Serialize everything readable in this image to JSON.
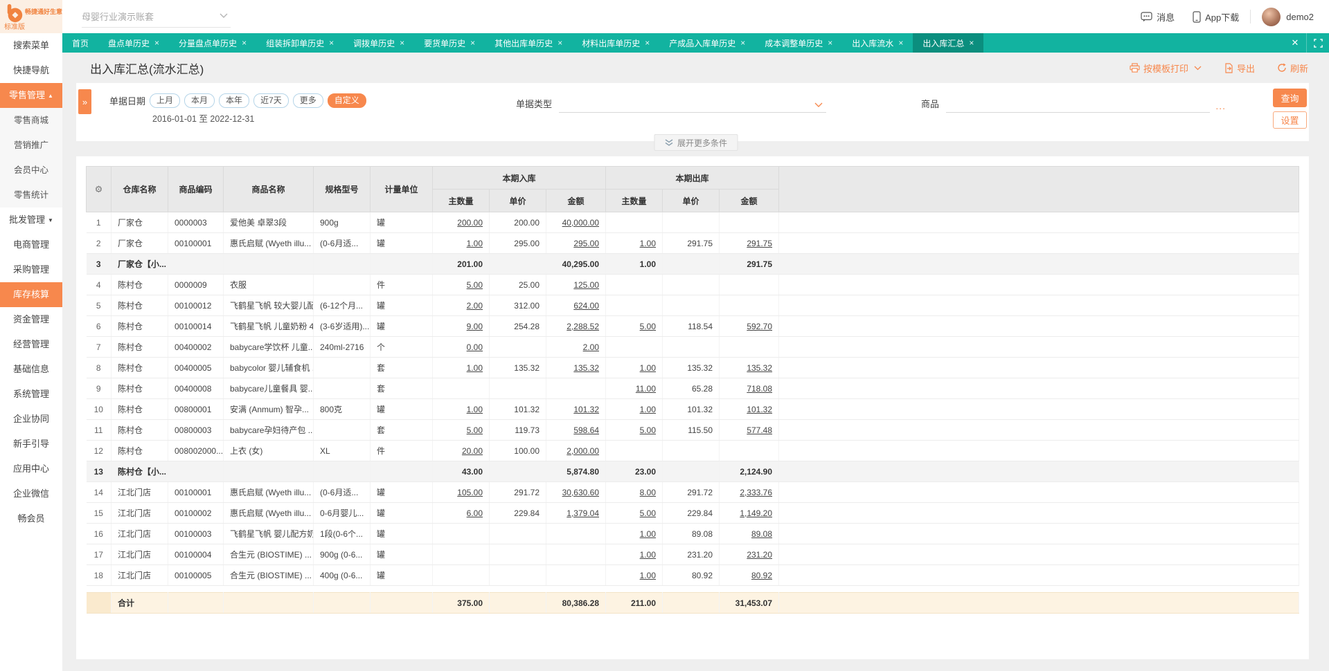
{
  "topbar": {
    "logo_title": "畅捷通好生意",
    "logo_subtitle": "标准版",
    "account_value": "母婴行业演示账套",
    "messages": "消息",
    "app_download": "App下载",
    "username": "demo2"
  },
  "tabbar": {
    "tabs": [
      {
        "label": "首页",
        "closable": false,
        "active": false
      },
      {
        "label": "盘点单历史",
        "closable": true,
        "active": false
      },
      {
        "label": "分量盘点单历史",
        "closable": true,
        "active": false
      },
      {
        "label": "组装拆卸单历史",
        "closable": true,
        "active": false
      },
      {
        "label": "调拨单历史",
        "closable": true,
        "active": false
      },
      {
        "label": "要货单历史",
        "closable": true,
        "active": false
      },
      {
        "label": "其他出库单历史",
        "closable": true,
        "active": false
      },
      {
        "label": "材料出库单历史",
        "closable": true,
        "active": false
      },
      {
        "label": "产成品入库单历史",
        "closable": true,
        "active": false
      },
      {
        "label": "成本调整单历史",
        "closable": true,
        "active": false
      },
      {
        "label": "出入库流水",
        "closable": true,
        "active": false
      },
      {
        "label": "出入库汇总",
        "closable": true,
        "active": true
      }
    ]
  },
  "sidebar": {
    "items": [
      {
        "label": "搜索菜单",
        "type": "normal"
      },
      {
        "label": "快捷导航",
        "type": "normal"
      },
      {
        "label": "零售管理",
        "type": "active",
        "arrow": "up"
      },
      {
        "label": "零售商城",
        "type": "sub"
      },
      {
        "label": "营销推广",
        "type": "sub"
      },
      {
        "label": "会员中心",
        "type": "sub"
      },
      {
        "label": "零售统计",
        "type": "sub"
      },
      {
        "label": "批发管理",
        "type": "normal",
        "arrow": "down"
      },
      {
        "label": "电商管理",
        "type": "normal"
      },
      {
        "label": "采购管理",
        "type": "normal"
      },
      {
        "label": "库存核算",
        "type": "active"
      },
      {
        "label": "资金管理",
        "type": "normal"
      },
      {
        "label": "经营管理",
        "type": "normal"
      },
      {
        "label": "基础信息",
        "type": "normal"
      },
      {
        "label": "系统管理",
        "type": "normal"
      },
      {
        "label": "企业协同",
        "type": "normal"
      },
      {
        "label": "新手引导",
        "type": "normal"
      },
      {
        "label": "应用中心",
        "type": "normal"
      },
      {
        "label": "企业微信",
        "type": "normal"
      },
      {
        "label": "畅会员",
        "type": "normal"
      }
    ]
  },
  "page": {
    "title": "出入库汇总(流水汇总)",
    "print": "按模板打印",
    "export": "导出",
    "refresh": "刷新"
  },
  "filters": {
    "date_label": "单据日期",
    "date_pills": [
      "上月",
      "本月",
      "本年",
      "近7天",
      "更多"
    ],
    "custom_pill": "自定义",
    "date_range": "2016-01-01 至 2022-12-31",
    "doc_type_label": "单据类型",
    "product_label": "商品",
    "product_more": "...",
    "search": "查询",
    "settings": "设置",
    "expand_more": "展开更多条件"
  },
  "colors": {
    "teal": "#12b3a0",
    "teal_active_tab": "#0b8e7e",
    "orange": "#f7884d",
    "total_row_bg": "#fdf3e2"
  },
  "table": {
    "headers": {
      "warehouse": "仓库名称",
      "code": "商品编码",
      "name": "商品名称",
      "spec": "规格型号",
      "unit": "计量单位",
      "in_group": "本期入库",
      "out_group": "本期出库",
      "qty": "主数量",
      "price": "单价",
      "amount": "金额"
    },
    "rows": [
      {
        "type": "data",
        "seq": "1",
        "warehouse": "厂家仓",
        "code": "0000003",
        "name": "爱他美 卓翠3段",
        "spec": "900g",
        "unit": "罐",
        "in_qty": "200.00",
        "in_price": "200.00",
        "in_amount": "40,000.00",
        "out_qty": "",
        "out_price": "",
        "out_amount": ""
      },
      {
        "type": "data",
        "seq": "2",
        "warehouse": "厂家仓",
        "code": "00100001",
        "name": "惠氏启赋 (Wyeth illu...",
        "spec": "(0-6月适...",
        "unit": "罐",
        "in_qty": "1.00",
        "in_price": "295.00",
        "in_amount": "295.00",
        "out_qty": "1.00",
        "out_price": "291.75",
        "out_amount": "291.75"
      },
      {
        "type": "subtotal",
        "seq": "3",
        "warehouse": "厂家仓【小...",
        "code": "",
        "name": "",
        "spec": "",
        "unit": "",
        "in_qty": "201.00",
        "in_price": "",
        "in_amount": "40,295.00",
        "out_qty": "1.00",
        "out_price": "",
        "out_amount": "291.75"
      },
      {
        "type": "data",
        "seq": "4",
        "warehouse": "陈村仓",
        "code": "0000009",
        "name": "衣服",
        "spec": "",
        "unit": "件",
        "in_qty": "5.00",
        "in_price": "25.00",
        "in_amount": "125.00",
        "out_qty": "",
        "out_price": "",
        "out_amount": ""
      },
      {
        "type": "data",
        "seq": "5",
        "warehouse": "陈村仓",
        "code": "00100012",
        "name": "飞鹤星飞帆 较大婴儿配...",
        "spec": "(6-12个月...",
        "unit": "罐",
        "in_qty": "2.00",
        "in_price": "312.00",
        "in_amount": "624.00",
        "out_qty": "",
        "out_price": "",
        "out_amount": ""
      },
      {
        "type": "data",
        "seq": "6",
        "warehouse": "陈村仓",
        "code": "00100014",
        "name": "飞鹤星飞帆 儿童奶粉 4...",
        "spec": "(3-6岁适用)...",
        "unit": "罐",
        "in_qty": "9.00",
        "in_price": "254.28",
        "in_amount": "2,288.52",
        "out_qty": "5.00",
        "out_price": "118.54",
        "out_amount": "592.70"
      },
      {
        "type": "data",
        "seq": "7",
        "warehouse": "陈村仓",
        "code": "00400002",
        "name": "babycare学饮杯 儿童...",
        "spec": "240ml-2716",
        "unit": "个",
        "in_qty": "0.00",
        "in_price": "",
        "in_amount": "2.00",
        "out_qty": "",
        "out_price": "",
        "out_amount": ""
      },
      {
        "type": "data",
        "seq": "8",
        "warehouse": "陈村仓",
        "code": "00400005",
        "name": "babycolor 婴儿辅食机 ...",
        "spec": "",
        "unit": "套",
        "in_qty": "1.00",
        "in_price": "135.32",
        "in_amount": "135.32",
        "out_qty": "1.00",
        "out_price": "135.32",
        "out_amount": "135.32"
      },
      {
        "type": "data",
        "seq": "9",
        "warehouse": "陈村仓",
        "code": "00400008",
        "name": "babycare儿童餐具 婴...",
        "spec": "",
        "unit": "套",
        "in_qty": "",
        "in_price": "",
        "in_amount": "",
        "out_qty": "11.00",
        "out_price": "65.28",
        "out_amount": "718.08"
      },
      {
        "type": "data",
        "seq": "10",
        "warehouse": "陈村仓",
        "code": "00800001",
        "name": "安满 (Anmum) 智孕...",
        "spec": "800克",
        "unit": "罐",
        "in_qty": "1.00",
        "in_price": "101.32",
        "in_amount": "101.32",
        "out_qty": "1.00",
        "out_price": "101.32",
        "out_amount": "101.32"
      },
      {
        "type": "data",
        "seq": "11",
        "warehouse": "陈村仓",
        "code": "00800003",
        "name": "babycare孕妇待产包 ...",
        "spec": "",
        "unit": "套",
        "in_qty": "5.00",
        "in_price": "119.73",
        "in_amount": "598.64",
        "out_qty": "5.00",
        "out_price": "115.50",
        "out_amount": "577.48"
      },
      {
        "type": "data",
        "seq": "12",
        "warehouse": "陈村仓",
        "code": "008002000...",
        "name": "上衣 (女)",
        "spec": "XL",
        "unit": "件",
        "in_qty": "20.00",
        "in_price": "100.00",
        "in_amount": "2,000.00",
        "out_qty": "",
        "out_price": "",
        "out_amount": ""
      },
      {
        "type": "subtotal",
        "seq": "13",
        "warehouse": "陈村仓【小...",
        "code": "",
        "name": "",
        "spec": "",
        "unit": "",
        "in_qty": "43.00",
        "in_price": "",
        "in_amount": "5,874.80",
        "out_qty": "23.00",
        "out_price": "",
        "out_amount": "2,124.90"
      },
      {
        "type": "data",
        "seq": "14",
        "warehouse": "江北门店",
        "code": "00100001",
        "name": "惠氏启赋 (Wyeth illu...",
        "spec": "(0-6月适...",
        "unit": "罐",
        "in_qty": "105.00",
        "in_price": "291.72",
        "in_amount": "30,630.60",
        "out_qty": "8.00",
        "out_price": "291.72",
        "out_amount": "2,333.76"
      },
      {
        "type": "data",
        "seq": "15",
        "warehouse": "江北门店",
        "code": "00100002",
        "name": "惠氏启赋 (Wyeth illu...",
        "spec": "0-6月婴儿...",
        "unit": "罐",
        "in_qty": "6.00",
        "in_price": "229.84",
        "in_amount": "1,379.04",
        "out_qty": "5.00",
        "out_price": "229.84",
        "out_amount": "1,149.20"
      },
      {
        "type": "data",
        "seq": "16",
        "warehouse": "江北门店",
        "code": "00100003",
        "name": "飞鹤星飞帆 婴儿配方奶...",
        "spec": "1段(0-6个...",
        "unit": "罐",
        "in_qty": "",
        "in_price": "",
        "in_amount": "",
        "out_qty": "1.00",
        "out_price": "89.08",
        "out_amount": "89.08"
      },
      {
        "type": "data",
        "seq": "17",
        "warehouse": "江北门店",
        "code": "00100004",
        "name": "合生元 (BIOSTIME) ...",
        "spec": "900g (0-6...",
        "unit": "罐",
        "in_qty": "",
        "in_price": "",
        "in_amount": "",
        "out_qty": "1.00",
        "out_price": "231.20",
        "out_amount": "231.20"
      },
      {
        "type": "data",
        "seq": "18",
        "warehouse": "江北门店",
        "code": "00100005",
        "name": "合生元 (BIOSTIME) ...",
        "spec": "400g (0-6...",
        "unit": "罐",
        "in_qty": "",
        "in_price": "",
        "in_amount": "",
        "out_qty": "1.00",
        "out_price": "80.92",
        "out_amount": "80.92"
      },
      {
        "type": "total",
        "seq": "",
        "warehouse": "合计",
        "code": "",
        "name": "",
        "spec": "",
        "unit": "",
        "in_qty": "375.00",
        "in_price": "",
        "in_amount": "80,386.28",
        "out_qty": "211.00",
        "out_price": "",
        "out_amount": "31,453.07"
      }
    ]
  }
}
